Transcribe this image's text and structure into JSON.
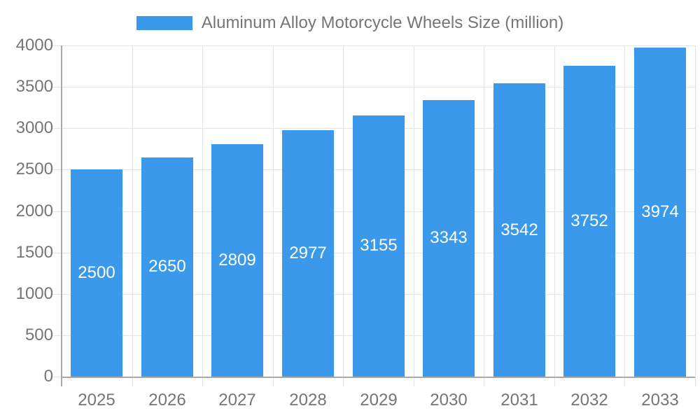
{
  "legend": {
    "label": "Aluminum Alloy Motorcycle Wheels Size (million)"
  },
  "chart_data": {
    "type": "bar",
    "title": "",
    "xlabel": "",
    "ylabel": "",
    "categories": [
      "2025",
      "2026",
      "2027",
      "2028",
      "2029",
      "2030",
      "2031",
      "2032",
      "2033"
    ],
    "series": [
      {
        "name": "Aluminum Alloy Motorcycle Wheels Size (million)",
        "values": [
          2500,
          2650,
          2809,
          2977,
          3155,
          3343,
          3542,
          3752,
          3974
        ]
      }
    ],
    "value_labels_shown": true,
    "ylim": [
      0,
      4000
    ],
    "ytick_step": 500,
    "ytick_labels": [
      "0",
      "500",
      "1000",
      "1500",
      "2000",
      "2500",
      "3000",
      "3500",
      "4000"
    ],
    "grid": true,
    "legend_position": "top",
    "colors": {
      "bar": "#3B99EC",
      "value_label": "#FFFFFF",
      "grid": "#E3E3E3",
      "axis": "#A9A9A9",
      "text": "#757575"
    }
  }
}
